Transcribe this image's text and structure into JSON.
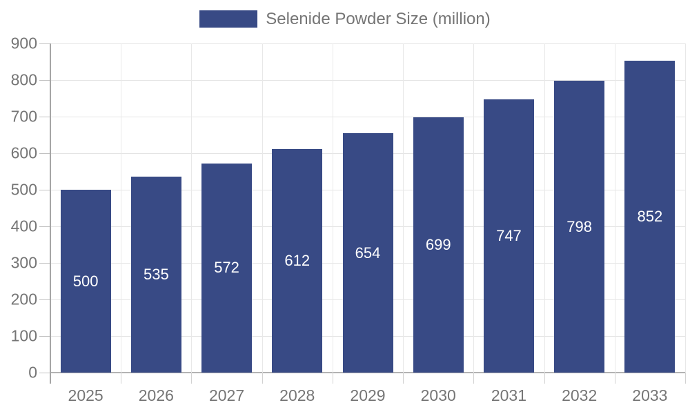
{
  "legend": {
    "label": "Selenide Powder Size (million)"
  },
  "chart_data": {
    "type": "bar",
    "title": "Selenide Powder Size (million)",
    "series_name": "Selenide Powder Size (million)",
    "categories": [
      "2025",
      "2026",
      "2027",
      "2028",
      "2029",
      "2030",
      "2031",
      "2032",
      "2033"
    ],
    "values": [
      500,
      535,
      572,
      612,
      654,
      699,
      747,
      798,
      852
    ],
    "bar_labels": [
      "500",
      "535",
      "572",
      "612",
      "654",
      "699",
      "747",
      "798",
      "852"
    ],
    "xlabel": "",
    "ylabel": "",
    "ylim": [
      0,
      900
    ],
    "ytick_step": 100,
    "ytick_labels": [
      "0",
      "100",
      "200",
      "300",
      "400",
      "500",
      "600",
      "700",
      "800",
      "900"
    ],
    "grid": true,
    "legend_position": "top",
    "colors": {
      "bar": "#384a85",
      "bar_label": "#ffffff",
      "axis_text": "#757575",
      "gridline": "#e4e4e4",
      "axis_line": "#a6a6a6",
      "baseline": "#b3b3b3"
    }
  }
}
